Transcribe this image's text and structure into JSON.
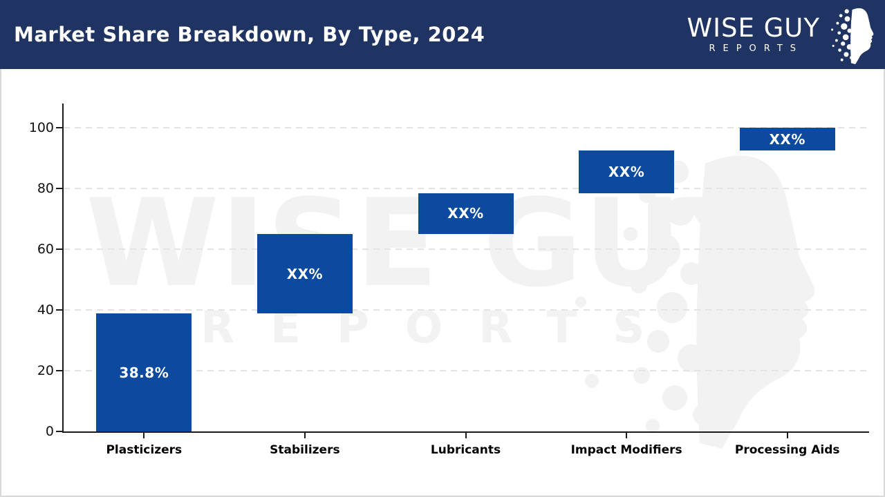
{
  "header": {
    "title": "Market Share Breakdown, By Type, 2024",
    "logo": {
      "brand": "WISE GUY",
      "sub": "REPORTS",
      "icon": "dotted-face-icon"
    }
  },
  "watermark": {
    "brand": "WISE GUY",
    "sub": "REPORTS"
  },
  "chart_data": {
    "type": "bar",
    "variant": "waterfall",
    "title": "Market Share Breakdown, By Type, 2024",
    "categories": [
      "Plasticizers",
      "Stabilizers",
      "Lubricants",
      "Impact Modifiers",
      "Processing Aids"
    ],
    "segments": [
      {
        "category": "Plasticizers",
        "start": 0,
        "end": 38.8,
        "label": "38.8%"
      },
      {
        "category": "Stabilizers",
        "start": 38.8,
        "end": 65,
        "label": "XX%"
      },
      {
        "category": "Lubricants",
        "start": 65,
        "end": 78.5,
        "label": "XX%"
      },
      {
        "category": "Impact Modifiers",
        "start": 78.5,
        "end": 92.5,
        "label": "XX%"
      },
      {
        "category": "Processing Aids",
        "start": 92.5,
        "end": 100,
        "label": "XX%"
      }
    ],
    "xlabel": "",
    "ylabel": "",
    "ylim": [
      0,
      100
    ],
    "yticks": [
      0,
      20,
      40,
      60,
      80,
      100
    ],
    "grid": "horizontal-dashed",
    "legend": null,
    "colors": {
      "bar": "#0b4a9e",
      "bar_label": "#ffffff",
      "grid": "#e3e3e3",
      "axis": "#1a1a1a",
      "tick_label": "#111111",
      "header_bg": "#203463",
      "watermark": "#f2f2f2"
    }
  }
}
